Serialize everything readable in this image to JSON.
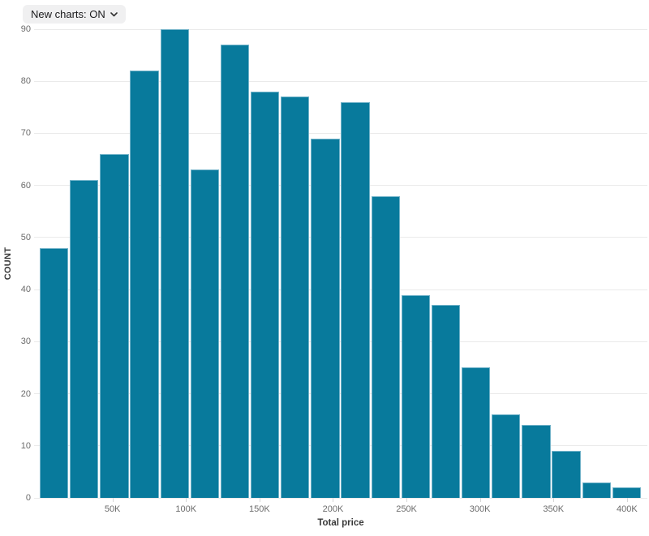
{
  "controls": {
    "new_charts_label": "New charts: ON",
    "chevron_icon": "chevron-down"
  },
  "chart_data": {
    "type": "histogram",
    "title": "",
    "xlabel": "Total price",
    "ylabel": "COUNT",
    "counts": [
      48,
      61,
      66,
      82,
      90,
      63,
      87,
      78,
      77,
      69,
      76,
      58,
      39,
      37,
      25,
      16,
      14,
      9,
      3,
      2
    ],
    "bins": 20,
    "x_range_k": [
      0,
      410
    ],
    "bin_width_k": 20.5,
    "x_tick_values_k": [
      50,
      100,
      150,
      200,
      250,
      300,
      350,
      400
    ],
    "x_tick_labels": [
      "50K",
      "100K",
      "150K",
      "200K",
      "250K",
      "300K",
      "350K",
      "400K"
    ],
    "y_ticks": [
      0,
      10,
      20,
      30,
      40,
      50,
      60,
      70,
      80,
      90
    ],
    "ylim": [
      0,
      90
    ],
    "grid": true,
    "legend": "none",
    "bar_color": "#087a9c",
    "bar_stroke_color": "#74b4ca",
    "gridline_color": "#eaeaea",
    "tick_text_color": "#6b6b6b",
    "axis_title_color": "#3a3a3a",
    "dropdown_bg_color": "#f0f0f1"
  }
}
